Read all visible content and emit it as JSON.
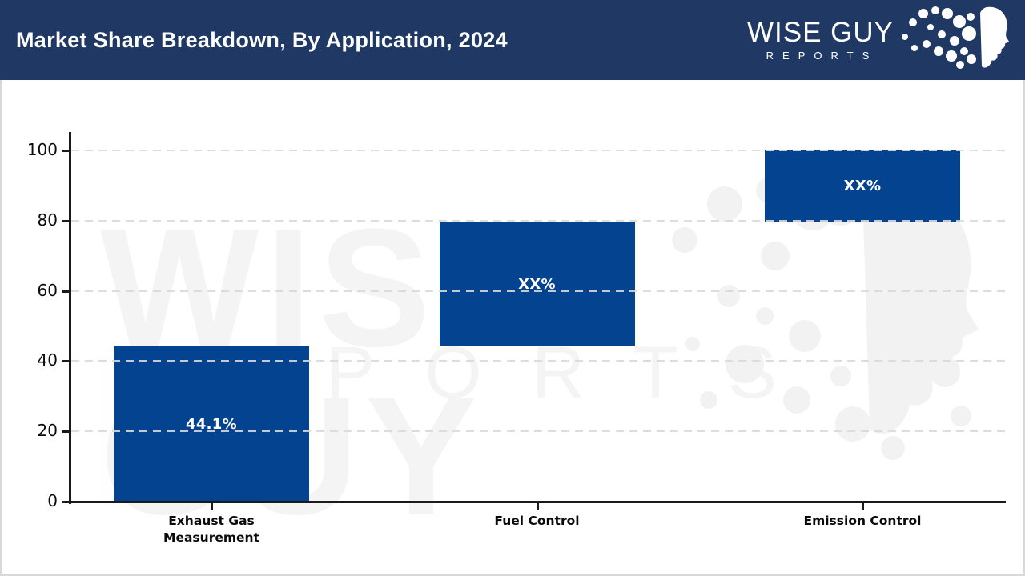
{
  "header": {
    "title": "Market Share Breakdown, By Application, 2024",
    "bg_color": "#203864",
    "brand": {
      "name": "WISE GUY",
      "sub": "REPORTS"
    }
  },
  "watermark": {
    "line1": "WISE GUY",
    "line2": "REPORTS"
  },
  "chart_data": {
    "type": "bar",
    "subtype": "waterfall",
    "title": "Market Share Breakdown, By Application, 2024",
    "categories": [
      {
        "lines": [
          "Exhaust Gas",
          "Measurement"
        ]
      },
      {
        "lines": [
          "Fuel Control"
        ]
      },
      {
        "lines": [
          "Emission Control"
        ]
      }
    ],
    "segments": [
      {
        "label": "44.1%",
        "start": 0,
        "end": 44.1
      },
      {
        "label": "XX%",
        "start": 44.1,
        "end": 79.6
      },
      {
        "label": "XX%",
        "start": 79.6,
        "end": 100
      }
    ],
    "yticks": [
      0,
      20,
      40,
      60,
      80,
      100
    ],
    "ylim": [
      0,
      105
    ],
    "grid": "dashed-horizontal",
    "legend": "none",
    "bar_color": "#04438F",
    "bar_label_color": "#ffffff",
    "xlabel": "",
    "ylabel": ""
  }
}
